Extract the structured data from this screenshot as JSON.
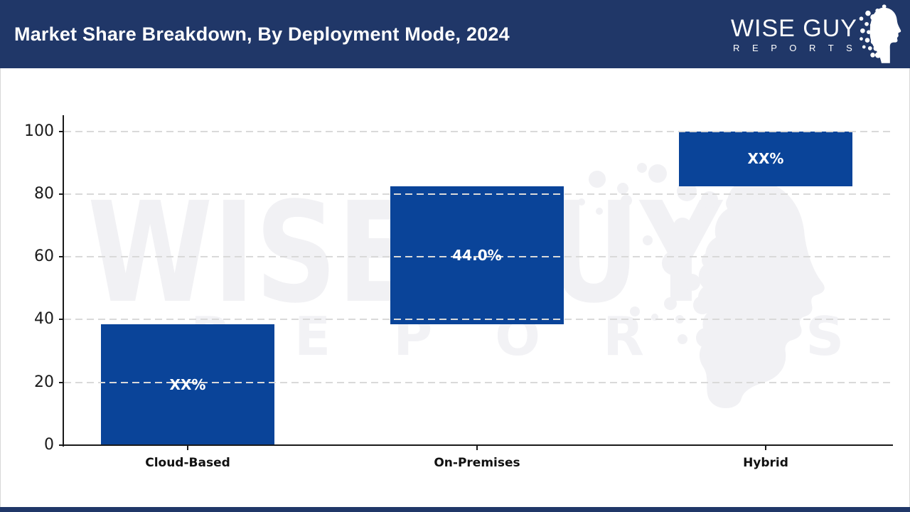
{
  "header": {
    "title": "Market Share Breakdown, By Deployment Mode, 2024",
    "logo": {
      "line1": "WISE GUY",
      "line2": "R E P O R T S"
    }
  },
  "watermark": {
    "line1": "WISE GUY",
    "line2": "R E P O R T S"
  },
  "chart_data": {
    "type": "bar",
    "subtype": "floating-waterfall-segments",
    "title": "Market Share Breakdown, By Deployment Mode, 2024",
    "categories": [
      "Cloud-Based",
      "On-Premises",
      "Hybrid"
    ],
    "segments": [
      {
        "category": "Cloud-Based",
        "start": 0,
        "end": 38.5,
        "label": "XX%"
      },
      {
        "category": "On-Premises",
        "start": 38.5,
        "end": 82.5,
        "label": "44.0%"
      },
      {
        "category": "Hybrid",
        "start": 82.5,
        "end": 100,
        "label": "XX%"
      }
    ],
    "xlabel": "",
    "ylabel": "",
    "ylim": [
      0,
      105
    ],
    "yticks": [
      0,
      20,
      40,
      60,
      80,
      100
    ],
    "grid": "horizontal-dashed",
    "legend": "none"
  },
  "colors": {
    "header_navy": "#203768",
    "bar_blue": "#0a4499",
    "grid_gray": "#d9d9d9",
    "axis_black": "#1a1a1a",
    "watermark_gray": "#f1f1f4",
    "label_white": "#ffffff"
  }
}
